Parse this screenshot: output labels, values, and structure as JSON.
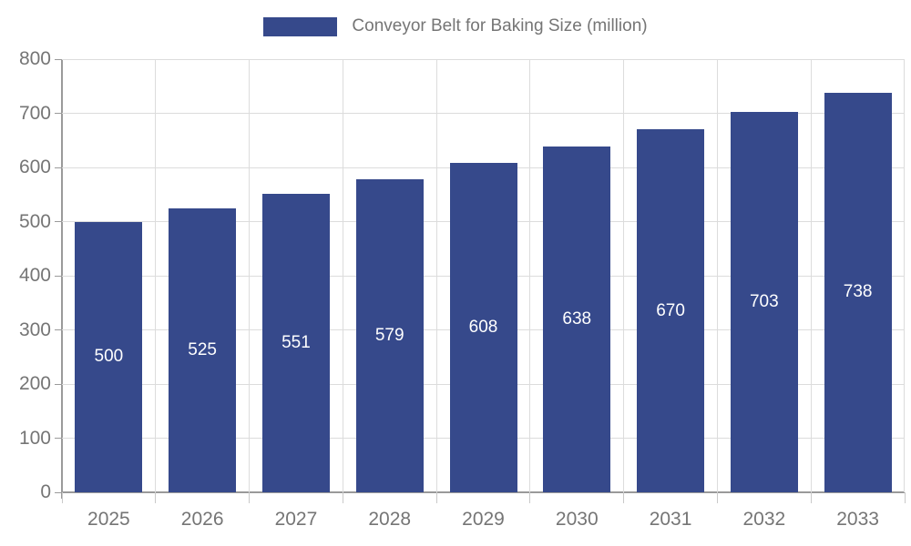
{
  "chart_data": {
    "type": "bar",
    "legend": "Conveyor Belt for Baking Size (million)",
    "categories": [
      "2025",
      "2026",
      "2027",
      "2028",
      "2029",
      "2030",
      "2031",
      "2032",
      "2033"
    ],
    "values": [
      500,
      525,
      551,
      579,
      608,
      638,
      670,
      703,
      738
    ],
    "title": "",
    "xlabel": "",
    "ylabel": "",
    "ylim": [
      0,
      800
    ],
    "yticks": [
      0,
      100,
      200,
      300,
      400,
      500,
      600,
      700,
      800
    ],
    "grid": true,
    "legend_position": "top-center",
    "colors": {
      "bar": "#36498b",
      "bar_label": "#ffffff",
      "axis_text": "#757575",
      "axis_line": "#9a9a9a",
      "grid_line": "#dcdcdc",
      "x_tick": "#c9c9c9"
    }
  }
}
